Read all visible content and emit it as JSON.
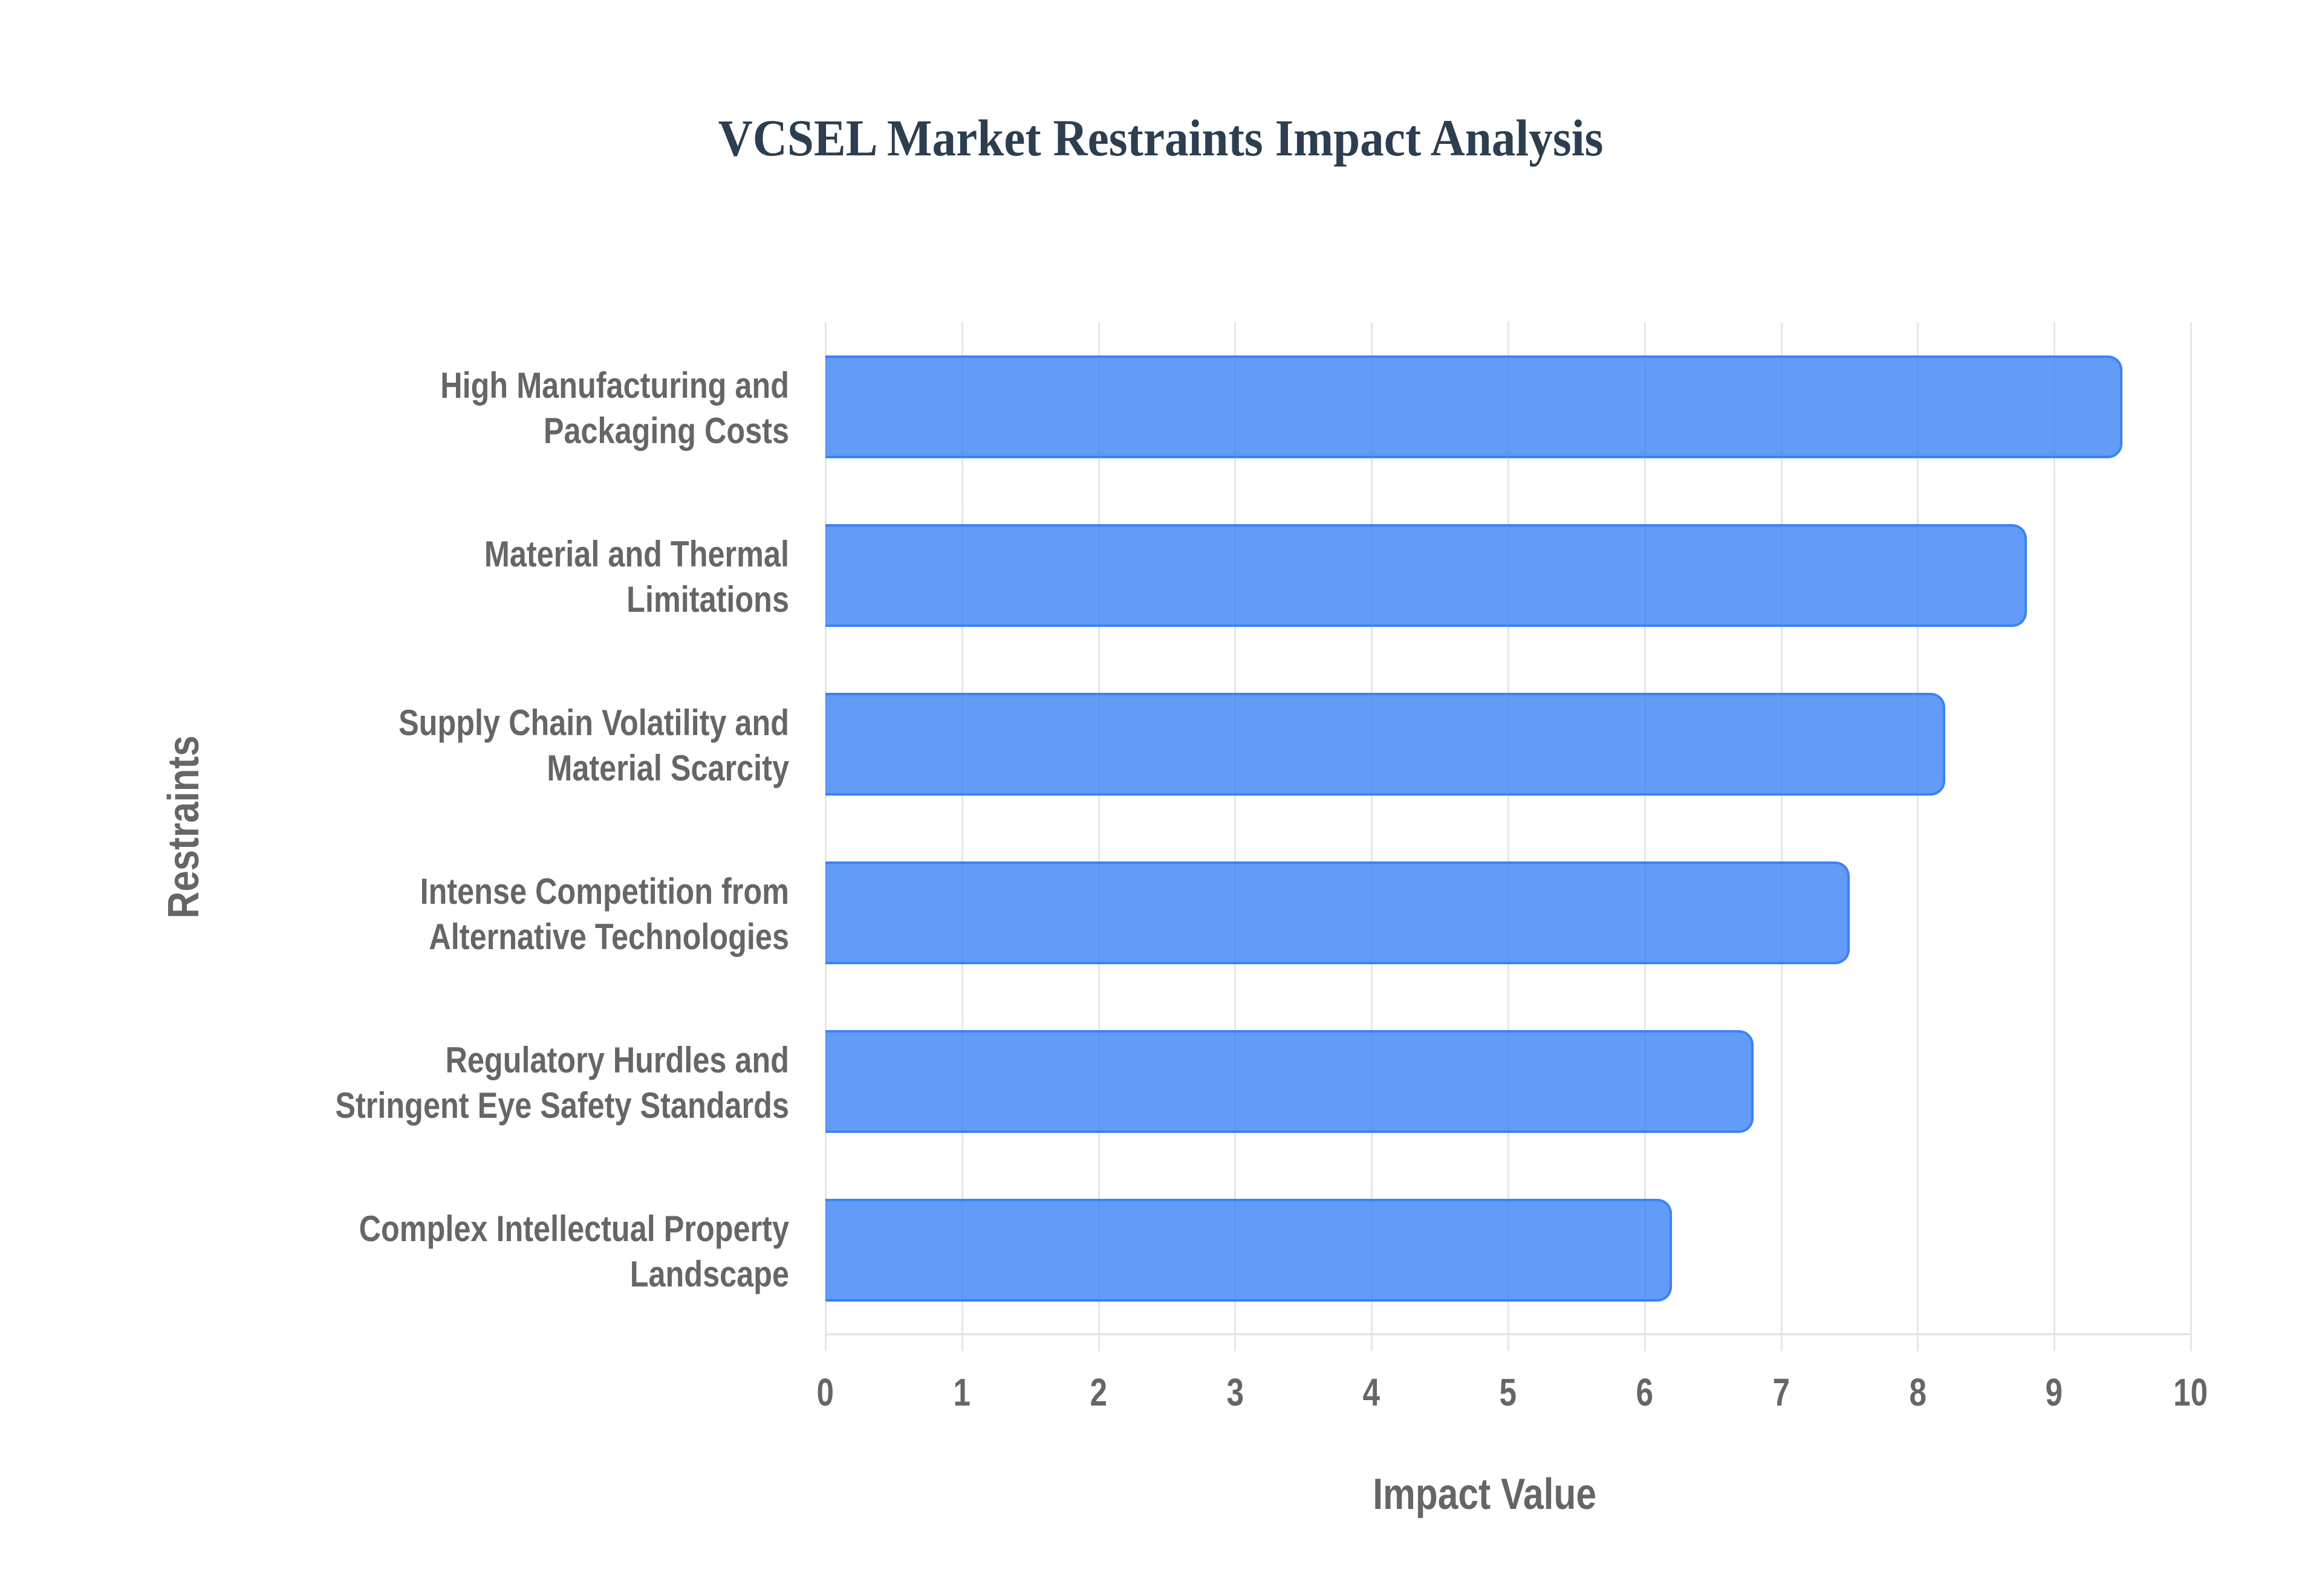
{
  "chart_data": {
    "type": "bar",
    "orientation": "horizontal",
    "title": "VCSEL Market Restraints Impact Analysis",
    "xlabel": "Impact Value",
    "ylabel": "Restraints",
    "xlim": [
      0,
      10
    ],
    "xticks": [
      "0",
      "1",
      "2",
      "3",
      "4",
      "5",
      "6",
      "7",
      "8",
      "9",
      "10"
    ],
    "grid": true,
    "legend": null,
    "categories": [
      "High Manufacturing and Packaging Costs",
      "Material and Thermal Limitations",
      "Supply Chain Volatility and Material Scarcity",
      "Intense Competition from Alternative Technologies",
      "Regulatory Hurdles and Stringent Eye Safety Standards",
      "Complex Intellectual Property Landscape"
    ],
    "category_lines": [
      [
        "High Manufacturing and",
        "Packaging Costs"
      ],
      [
        "Material and Thermal",
        "Limitations"
      ],
      [
        "Supply Chain Volatility and",
        "Material Scarcity"
      ],
      [
        "Intense Competition from",
        "Alternative Technologies"
      ],
      [
        "Regulatory Hurdles and",
        "Stringent Eye Safety Standards"
      ],
      [
        "Complex Intellectual Property",
        "Landscape"
      ]
    ],
    "values": [
      9.5,
      8.8,
      8.2,
      7.5,
      6.8,
      6.2
    ],
    "colors": {
      "bar_fill": "#3b82f6cc",
      "bar_border": "#3b82f6",
      "grid": "#e6e6e6",
      "title": "#2c3e50",
      "axis_text": "#666666"
    }
  }
}
